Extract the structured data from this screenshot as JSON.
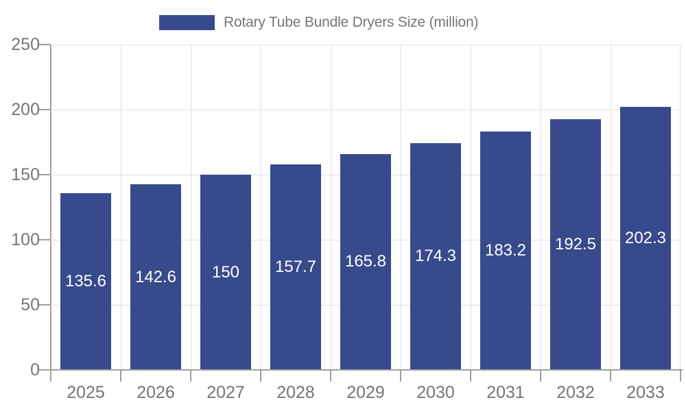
{
  "legend": {
    "label": "Rotary Tube Bundle Dryers Size (million)"
  },
  "chart_data": {
    "type": "bar",
    "title": "Rotary Tube Bundle Dryers Size (million)",
    "categories": [
      "2025",
      "2026",
      "2027",
      "2028",
      "2029",
      "2030",
      "2031",
      "2032",
      "2033"
    ],
    "values": [
      135.6,
      142.6,
      150,
      157.7,
      165.8,
      174.3,
      183.2,
      192.5,
      202.3
    ],
    "value_labels": [
      "135.6",
      "142.6",
      "150",
      "157.7",
      "165.8",
      "174.3",
      "183.2",
      "192.5",
      "202.3"
    ],
    "xlabel": "",
    "ylabel": "",
    "ylim": [
      0,
      250
    ],
    "yticks": [
      0,
      50,
      100,
      150,
      200,
      250
    ],
    "grid": true,
    "legend_position": "top-center",
    "value_label_position": "center-of-bar",
    "colors": {
      "bar": "#374A8B",
      "value_label": "#FFFFFF",
      "axis_text": "#757575",
      "grid_line": "#E0E0E0",
      "grid_line_vertical": "#E0E0E6",
      "axis_line": "#9E9E9E",
      "background": "#FFFFFF"
    }
  }
}
